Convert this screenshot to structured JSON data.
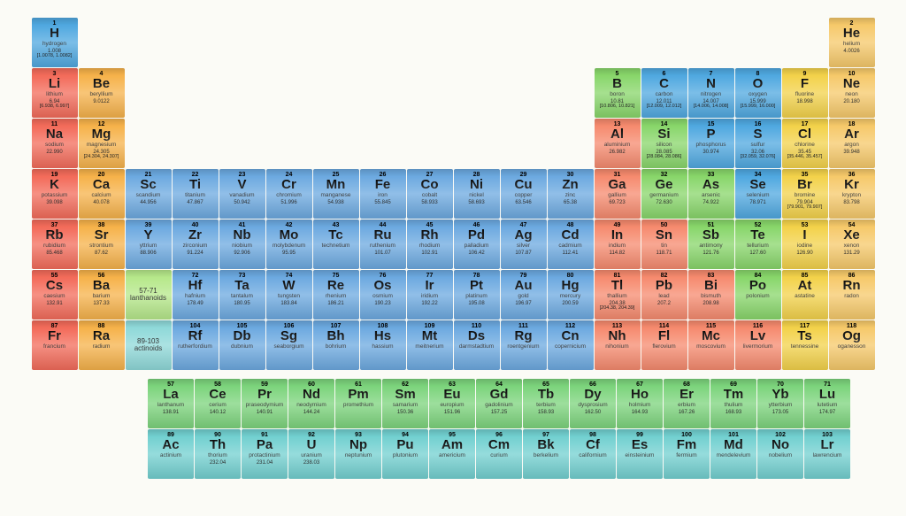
{
  "colors": {
    "alkali": "#f36b5a",
    "alkaline_earth": "#f6b24a",
    "transition": "#6ca9e0",
    "post_transition": "#f68a6e",
    "metalloid": "#88d66a",
    "nonmetal": "#4fa8e0",
    "halogen": "#f3d24a",
    "noble": "#f6c96a",
    "lanthanoid_label": "#b6e88a",
    "actinoid_label": "#8fd9d9",
    "lanthanoid": "#7cd47c",
    "actinoid": "#72d0d0",
    "background": "#fbfbf6"
  },
  "labels": {
    "lanthanoids": "57-71\nlanthanoids",
    "actinoids": "89-103\nactinoids"
  },
  "elements": [
    {
      "z": 1,
      "sym": "H",
      "name": "hydrogen",
      "mass": "1.008",
      "interval": "[1.0078, 1.0082]",
      "cat": "nonmetal",
      "row": 1,
      "col": 1
    },
    {
      "z": 2,
      "sym": "He",
      "name": "helium",
      "mass": "4.0026",
      "cat": "noble",
      "row": 1,
      "col": 18
    },
    {
      "z": 3,
      "sym": "Li",
      "name": "lithium",
      "mass": "6.94",
      "interval": "[6.938, 6.997]",
      "cat": "alkali",
      "row": 2,
      "col": 1
    },
    {
      "z": 4,
      "sym": "Be",
      "name": "beryllium",
      "mass": "9.0122",
      "cat": "alkaline_earth",
      "row": 2,
      "col": 2
    },
    {
      "z": 5,
      "sym": "B",
      "name": "boron",
      "mass": "10.81",
      "interval": "[10.806, 10.821]",
      "cat": "metalloid",
      "row": 2,
      "col": 13
    },
    {
      "z": 6,
      "sym": "C",
      "name": "carbon",
      "mass": "12.011",
      "interval": "[12.009, 12.012]",
      "cat": "nonmetal",
      "row": 2,
      "col": 14
    },
    {
      "z": 7,
      "sym": "N",
      "name": "nitrogen",
      "mass": "14.007",
      "interval": "[14.006, 14.008]",
      "cat": "nonmetal",
      "row": 2,
      "col": 15
    },
    {
      "z": 8,
      "sym": "O",
      "name": "oxygen",
      "mass": "15.999",
      "interval": "[15.999, 16.000]",
      "cat": "nonmetal",
      "row": 2,
      "col": 16
    },
    {
      "z": 9,
      "sym": "F",
      "name": "fluorine",
      "mass": "18.998",
      "cat": "halogen",
      "row": 2,
      "col": 17
    },
    {
      "z": 10,
      "sym": "Ne",
      "name": "neon",
      "mass": "20.180",
      "cat": "noble",
      "row": 2,
      "col": 18
    },
    {
      "z": 11,
      "sym": "Na",
      "name": "sodium",
      "mass": "22.990",
      "cat": "alkali",
      "row": 3,
      "col": 1
    },
    {
      "z": 12,
      "sym": "Mg",
      "name": "magnesium",
      "mass": "24.305",
      "interval": "[24.304, 24.307]",
      "cat": "alkaline_earth",
      "row": 3,
      "col": 2
    },
    {
      "z": 13,
      "sym": "Al",
      "name": "aluminium",
      "mass": "26.982",
      "cat": "post_transition",
      "row": 3,
      "col": 13
    },
    {
      "z": 14,
      "sym": "Si",
      "name": "silicon",
      "mass": "28.085",
      "interval": "[28.084, 28.086]",
      "cat": "metalloid",
      "row": 3,
      "col": 14
    },
    {
      "z": 15,
      "sym": "P",
      "name": "phosphorus",
      "mass": "30.974",
      "cat": "nonmetal",
      "row": 3,
      "col": 15
    },
    {
      "z": 16,
      "sym": "S",
      "name": "sulfur",
      "mass": "32.06",
      "interval": "[32.059, 32.076]",
      "cat": "nonmetal",
      "row": 3,
      "col": 16
    },
    {
      "z": 17,
      "sym": "Cl",
      "name": "chlorine",
      "mass": "35.45",
      "interval": "[35.446, 35.457]",
      "cat": "halogen",
      "row": 3,
      "col": 17
    },
    {
      "z": 18,
      "sym": "Ar",
      "name": "argon",
      "mass": "39.948",
      "cat": "noble",
      "row": 3,
      "col": 18
    },
    {
      "z": 19,
      "sym": "K",
      "name": "potassium",
      "mass": "39.098",
      "cat": "alkali",
      "row": 4,
      "col": 1
    },
    {
      "z": 20,
      "sym": "Ca",
      "name": "calcium",
      "mass": "40.078",
      "cat": "alkaline_earth",
      "row": 4,
      "col": 2
    },
    {
      "z": 21,
      "sym": "Sc",
      "name": "scandium",
      "mass": "44.956",
      "cat": "transition",
      "row": 4,
      "col": 3
    },
    {
      "z": 22,
      "sym": "Ti",
      "name": "titanium",
      "mass": "47.867",
      "cat": "transition",
      "row": 4,
      "col": 4
    },
    {
      "z": 23,
      "sym": "V",
      "name": "vanadium",
      "mass": "50.942",
      "cat": "transition",
      "row": 4,
      "col": 5
    },
    {
      "z": 24,
      "sym": "Cr",
      "name": "chromium",
      "mass": "51.996",
      "cat": "transition",
      "row": 4,
      "col": 6
    },
    {
      "z": 25,
      "sym": "Mn",
      "name": "manganese",
      "mass": "54.938",
      "cat": "transition",
      "row": 4,
      "col": 7
    },
    {
      "z": 26,
      "sym": "Fe",
      "name": "iron",
      "mass": "55.845",
      "cat": "transition",
      "row": 4,
      "col": 8
    },
    {
      "z": 27,
      "sym": "Co",
      "name": "cobalt",
      "mass": "58.933",
      "cat": "transition",
      "row": 4,
      "col": 9
    },
    {
      "z": 28,
      "sym": "Ni",
      "name": "nickel",
      "mass": "58.693",
      "cat": "transition",
      "row": 4,
      "col": 10
    },
    {
      "z": 29,
      "sym": "Cu",
      "name": "copper",
      "mass": "63.546",
      "cat": "transition",
      "row": 4,
      "col": 11
    },
    {
      "z": 30,
      "sym": "Zn",
      "name": "zinc",
      "mass": "65.38",
      "cat": "transition",
      "row": 4,
      "col": 12
    },
    {
      "z": 31,
      "sym": "Ga",
      "name": "gallium",
      "mass": "69.723",
      "cat": "post_transition",
      "row": 4,
      "col": 13
    },
    {
      "z": 32,
      "sym": "Ge",
      "name": "germanium",
      "mass": "72.630",
      "cat": "metalloid",
      "row": 4,
      "col": 14
    },
    {
      "z": 33,
      "sym": "As",
      "name": "arsenic",
      "mass": "74.922",
      "cat": "metalloid",
      "row": 4,
      "col": 15
    },
    {
      "z": 34,
      "sym": "Se",
      "name": "selenium",
      "mass": "78.971",
      "cat": "nonmetal",
      "row": 4,
      "col": 16
    },
    {
      "z": 35,
      "sym": "Br",
      "name": "bromine",
      "mass": "79.904",
      "interval": "[79.901, 79.907]",
      "cat": "halogen",
      "row": 4,
      "col": 17
    },
    {
      "z": 36,
      "sym": "Kr",
      "name": "krypton",
      "mass": "83.798",
      "cat": "noble",
      "row": 4,
      "col": 18
    },
    {
      "z": 37,
      "sym": "Rb",
      "name": "rubidium",
      "mass": "85.468",
      "cat": "alkali",
      "row": 5,
      "col": 1
    },
    {
      "z": 38,
      "sym": "Sr",
      "name": "strontium",
      "mass": "87.62",
      "cat": "alkaline_earth",
      "row": 5,
      "col": 2
    },
    {
      "z": 39,
      "sym": "Y",
      "name": "yttrium",
      "mass": "88.906",
      "cat": "transition",
      "row": 5,
      "col": 3
    },
    {
      "z": 40,
      "sym": "Zr",
      "name": "zirconium",
      "mass": "91.224",
      "cat": "transition",
      "row": 5,
      "col": 4
    },
    {
      "z": 41,
      "sym": "Nb",
      "name": "niobium",
      "mass": "92.906",
      "cat": "transition",
      "row": 5,
      "col": 5
    },
    {
      "z": 42,
      "sym": "Mo",
      "name": "molybdenum",
      "mass": "95.95",
      "cat": "transition",
      "row": 5,
      "col": 6
    },
    {
      "z": 43,
      "sym": "Tc",
      "name": "technetium",
      "mass": "",
      "cat": "transition",
      "row": 5,
      "col": 7
    },
    {
      "z": 44,
      "sym": "Ru",
      "name": "ruthenium",
      "mass": "101.07",
      "cat": "transition",
      "row": 5,
      "col": 8
    },
    {
      "z": 45,
      "sym": "Rh",
      "name": "rhodium",
      "mass": "102.91",
      "cat": "transition",
      "row": 5,
      "col": 9
    },
    {
      "z": 46,
      "sym": "Pd",
      "name": "palladium",
      "mass": "106.42",
      "cat": "transition",
      "row": 5,
      "col": 10
    },
    {
      "z": 47,
      "sym": "Ag",
      "name": "silver",
      "mass": "107.87",
      "cat": "transition",
      "row": 5,
      "col": 11
    },
    {
      "z": 48,
      "sym": "Cd",
      "name": "cadmium",
      "mass": "112.41",
      "cat": "transition",
      "row": 5,
      "col": 12
    },
    {
      "z": 49,
      "sym": "In",
      "name": "indium",
      "mass": "114.82",
      "cat": "post_transition",
      "row": 5,
      "col": 13
    },
    {
      "z": 50,
      "sym": "Sn",
      "name": "tin",
      "mass": "118.71",
      "cat": "post_transition",
      "row": 5,
      "col": 14
    },
    {
      "z": 51,
      "sym": "Sb",
      "name": "antimony",
      "mass": "121.76",
      "cat": "metalloid",
      "row": 5,
      "col": 15
    },
    {
      "z": 52,
      "sym": "Te",
      "name": "tellurium",
      "mass": "127.60",
      "cat": "metalloid",
      "row": 5,
      "col": 16
    },
    {
      "z": 53,
      "sym": "I",
      "name": "iodine",
      "mass": "126.90",
      "cat": "halogen",
      "row": 5,
      "col": 17
    },
    {
      "z": 54,
      "sym": "Xe",
      "name": "xenon",
      "mass": "131.29",
      "cat": "noble",
      "row": 5,
      "col": 18
    },
    {
      "z": 55,
      "sym": "Cs",
      "name": "caesium",
      "mass": "132.91",
      "cat": "alkali",
      "row": 6,
      "col": 1
    },
    {
      "z": 56,
      "sym": "Ba",
      "name": "barium",
      "mass": "137.33",
      "cat": "alkaline_earth",
      "row": 6,
      "col": 2
    },
    {
      "z": 72,
      "sym": "Hf",
      "name": "hafnium",
      "mass": "178.49",
      "cat": "transition",
      "row": 6,
      "col": 4
    },
    {
      "z": 73,
      "sym": "Ta",
      "name": "tantalum",
      "mass": "180.95",
      "cat": "transition",
      "row": 6,
      "col": 5
    },
    {
      "z": 74,
      "sym": "W",
      "name": "tungsten",
      "mass": "183.84",
      "cat": "transition",
      "row": 6,
      "col": 6
    },
    {
      "z": 75,
      "sym": "Re",
      "name": "rhenium",
      "mass": "186.21",
      "cat": "transition",
      "row": 6,
      "col": 7
    },
    {
      "z": 76,
      "sym": "Os",
      "name": "osmium",
      "mass": "190.23",
      "cat": "transition",
      "row": 6,
      "col": 8
    },
    {
      "z": 77,
      "sym": "Ir",
      "name": "iridium",
      "mass": "192.22",
      "cat": "transition",
      "row": 6,
      "col": 9
    },
    {
      "z": 78,
      "sym": "Pt",
      "name": "platinum",
      "mass": "195.08",
      "cat": "transition",
      "row": 6,
      "col": 10
    },
    {
      "z": 79,
      "sym": "Au",
      "name": "gold",
      "mass": "196.97",
      "cat": "transition",
      "row": 6,
      "col": 11
    },
    {
      "z": 80,
      "sym": "Hg",
      "name": "mercury",
      "mass": "200.59",
      "cat": "transition",
      "row": 6,
      "col": 12
    },
    {
      "z": 81,
      "sym": "Tl",
      "name": "thallium",
      "mass": "204.38",
      "interval": "[204.38, 204.39]",
      "cat": "post_transition",
      "row": 6,
      "col": 13
    },
    {
      "z": 82,
      "sym": "Pb",
      "name": "lead",
      "mass": "207.2",
      "cat": "post_transition",
      "row": 6,
      "col": 14
    },
    {
      "z": 83,
      "sym": "Bi",
      "name": "bismuth",
      "mass": "208.98",
      "cat": "post_transition",
      "row": 6,
      "col": 15
    },
    {
      "z": 84,
      "sym": "Po",
      "name": "polonium",
      "mass": "",
      "cat": "metalloid",
      "row": 6,
      "col": 16
    },
    {
      "z": 85,
      "sym": "At",
      "name": "astatine",
      "mass": "",
      "cat": "halogen",
      "row": 6,
      "col": 17
    },
    {
      "z": 86,
      "sym": "Rn",
      "name": "radon",
      "mass": "",
      "cat": "noble",
      "row": 6,
      "col": 18
    },
    {
      "z": 87,
      "sym": "Fr",
      "name": "francium",
      "mass": "",
      "cat": "alkali",
      "row": 7,
      "col": 1
    },
    {
      "z": 88,
      "sym": "Ra",
      "name": "radium",
      "mass": "",
      "cat": "alkaline_earth",
      "row": 7,
      "col": 2
    },
    {
      "z": 104,
      "sym": "Rf",
      "name": "rutherfordium",
      "mass": "",
      "cat": "transition",
      "row": 7,
      "col": 4
    },
    {
      "z": 105,
      "sym": "Db",
      "name": "dubnium",
      "mass": "",
      "cat": "transition",
      "row": 7,
      "col": 5
    },
    {
      "z": 106,
      "sym": "Sg",
      "name": "seaborgium",
      "mass": "",
      "cat": "transition",
      "row": 7,
      "col": 6
    },
    {
      "z": 107,
      "sym": "Bh",
      "name": "bohrium",
      "mass": "",
      "cat": "transition",
      "row": 7,
      "col": 7
    },
    {
      "z": 108,
      "sym": "Hs",
      "name": "hassium",
      "mass": "",
      "cat": "transition",
      "row": 7,
      "col": 8
    },
    {
      "z": 109,
      "sym": "Mt",
      "name": "meitnerium",
      "mass": "",
      "cat": "transition",
      "row": 7,
      "col": 9
    },
    {
      "z": 110,
      "sym": "Ds",
      "name": "darmstadtium",
      "mass": "",
      "cat": "transition",
      "row": 7,
      "col": 10
    },
    {
      "z": 111,
      "sym": "Rg",
      "name": "roentgenium",
      "mass": "",
      "cat": "transition",
      "row": 7,
      "col": 11
    },
    {
      "z": 112,
      "sym": "Cn",
      "name": "copernicium",
      "mass": "",
      "cat": "transition",
      "row": 7,
      "col": 12
    },
    {
      "z": 113,
      "sym": "Nh",
      "name": "nihonium",
      "mass": "",
      "cat": "post_transition",
      "row": 7,
      "col": 13
    },
    {
      "z": 114,
      "sym": "Fl",
      "name": "flerovium",
      "mass": "",
      "cat": "post_transition",
      "row": 7,
      "col": 14
    },
    {
      "z": 115,
      "sym": "Mc",
      "name": "moscovium",
      "mass": "",
      "cat": "post_transition",
      "row": 7,
      "col": 15
    },
    {
      "z": 116,
      "sym": "Lv",
      "name": "livermorium",
      "mass": "",
      "cat": "post_transition",
      "row": 7,
      "col": 16
    },
    {
      "z": 117,
      "sym": "Ts",
      "name": "tennessine",
      "mass": "",
      "cat": "halogen",
      "row": 7,
      "col": 17
    },
    {
      "z": 118,
      "sym": "Og",
      "name": "oganesson",
      "mass": "",
      "cat": "noble",
      "row": 7,
      "col": 18
    }
  ],
  "lanthanoids": [
    {
      "z": 57,
      "sym": "La",
      "name": "lanthanum",
      "mass": "138.91"
    },
    {
      "z": 58,
      "sym": "Ce",
      "name": "cerium",
      "mass": "140.12"
    },
    {
      "z": 59,
      "sym": "Pr",
      "name": "praseodymium",
      "mass": "140.91"
    },
    {
      "z": 60,
      "sym": "Nd",
      "name": "neodymium",
      "mass": "144.24"
    },
    {
      "z": 61,
      "sym": "Pm",
      "name": "promethium",
      "mass": ""
    },
    {
      "z": 62,
      "sym": "Sm",
      "name": "samarium",
      "mass": "150.36"
    },
    {
      "z": 63,
      "sym": "Eu",
      "name": "europium",
      "mass": "151.96"
    },
    {
      "z": 64,
      "sym": "Gd",
      "name": "gadolinium",
      "mass": "157.25"
    },
    {
      "z": 65,
      "sym": "Tb",
      "name": "terbium",
      "mass": "158.93"
    },
    {
      "z": 66,
      "sym": "Dy",
      "name": "dysprosium",
      "mass": "162.50"
    },
    {
      "z": 67,
      "sym": "Ho",
      "name": "holmium",
      "mass": "164.93"
    },
    {
      "z": 68,
      "sym": "Er",
      "name": "erbium",
      "mass": "167.26"
    },
    {
      "z": 69,
      "sym": "Tm",
      "name": "thulium",
      "mass": "168.93"
    },
    {
      "z": 70,
      "sym": "Yb",
      "name": "ytterbium",
      "mass": "173.05"
    },
    {
      "z": 71,
      "sym": "Lu",
      "name": "lutetium",
      "mass": "174.97"
    }
  ],
  "actinoids": [
    {
      "z": 89,
      "sym": "Ac",
      "name": "actinium",
      "mass": ""
    },
    {
      "z": 90,
      "sym": "Th",
      "name": "thorium",
      "mass": "232.04"
    },
    {
      "z": 91,
      "sym": "Pa",
      "name": "protactinium",
      "mass": "231.04"
    },
    {
      "z": 92,
      "sym": "U",
      "name": "uranium",
      "mass": "238.03"
    },
    {
      "z": 93,
      "sym": "Np",
      "name": "neptunium",
      "mass": ""
    },
    {
      "z": 94,
      "sym": "Pu",
      "name": "plutonium",
      "mass": ""
    },
    {
      "z": 95,
      "sym": "Am",
      "name": "americium",
      "mass": ""
    },
    {
      "z": 96,
      "sym": "Cm",
      "name": "curium",
      "mass": ""
    },
    {
      "z": 97,
      "sym": "Bk",
      "name": "berkelium",
      "mass": ""
    },
    {
      "z": 98,
      "sym": "Cf",
      "name": "californium",
      "mass": ""
    },
    {
      "z": 99,
      "sym": "Es",
      "name": "einsteinium",
      "mass": ""
    },
    {
      "z": 100,
      "sym": "Fm",
      "name": "fermium",
      "mass": ""
    },
    {
      "z": 101,
      "sym": "Md",
      "name": "mendelevium",
      "mass": ""
    },
    {
      "z": 102,
      "sym": "No",
      "name": "nobelium",
      "mass": ""
    },
    {
      "z": 103,
      "sym": "Lr",
      "name": "lawrencium",
      "mass": ""
    }
  ]
}
